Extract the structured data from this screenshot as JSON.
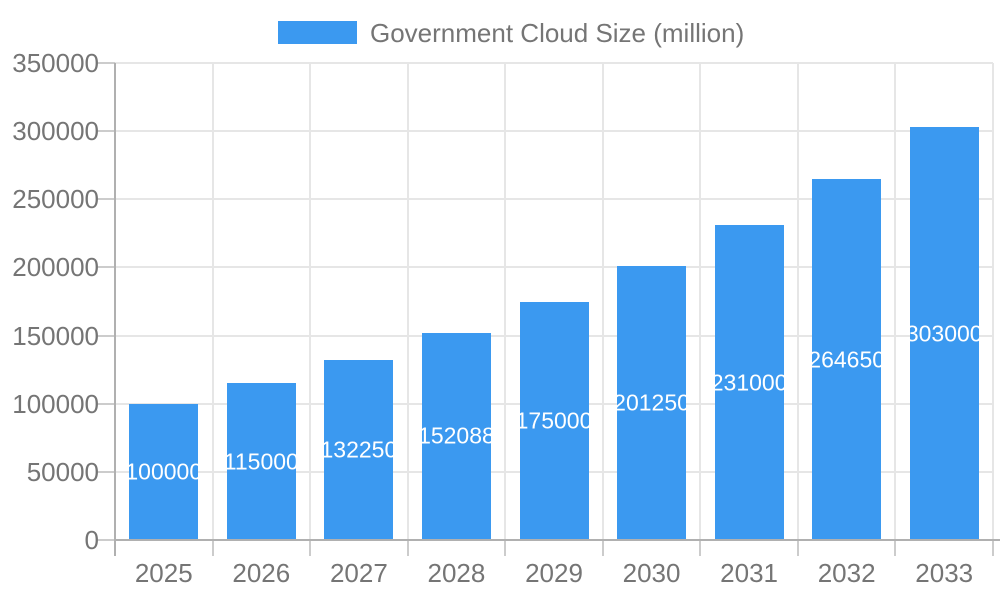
{
  "legend": {
    "label": "Government Cloud Size (million)"
  },
  "colors": {
    "bar": "#3b99f0",
    "grid": "#e6e6e6",
    "axis": "#b0b0b0",
    "tick": "#cccccc",
    "axis_text": "#757575",
    "title_text": "#757575",
    "value_text": "#ffffff",
    "background": "#ffffff"
  },
  "chart_data": {
    "type": "bar",
    "title": "Government Cloud Size (million)",
    "series_name": "Government Cloud Size (million)",
    "categories": [
      "2025",
      "2026",
      "2027",
      "2028",
      "2029",
      "2030",
      "2031",
      "2032",
      "2033"
    ],
    "values": [
      100000,
      115000,
      132250,
      152088,
      175000,
      201250,
      231000,
      264650,
      303000
    ],
    "value_labels": [
      "100000",
      "115000",
      "132250",
      "152088",
      "175000",
      "201250",
      "231000",
      "264650",
      "303000"
    ],
    "xlabel": "",
    "ylabel": "",
    "ylim": [
      0,
      350000
    ],
    "ytick_step": 50000,
    "ytick_labels": [
      "0",
      "50000",
      "100000",
      "150000",
      "200000",
      "250000",
      "300000",
      "350000"
    ],
    "grid": true,
    "legend_position": "top",
    "value_labels_shown": true,
    "value_label_position": "center-inside"
  }
}
